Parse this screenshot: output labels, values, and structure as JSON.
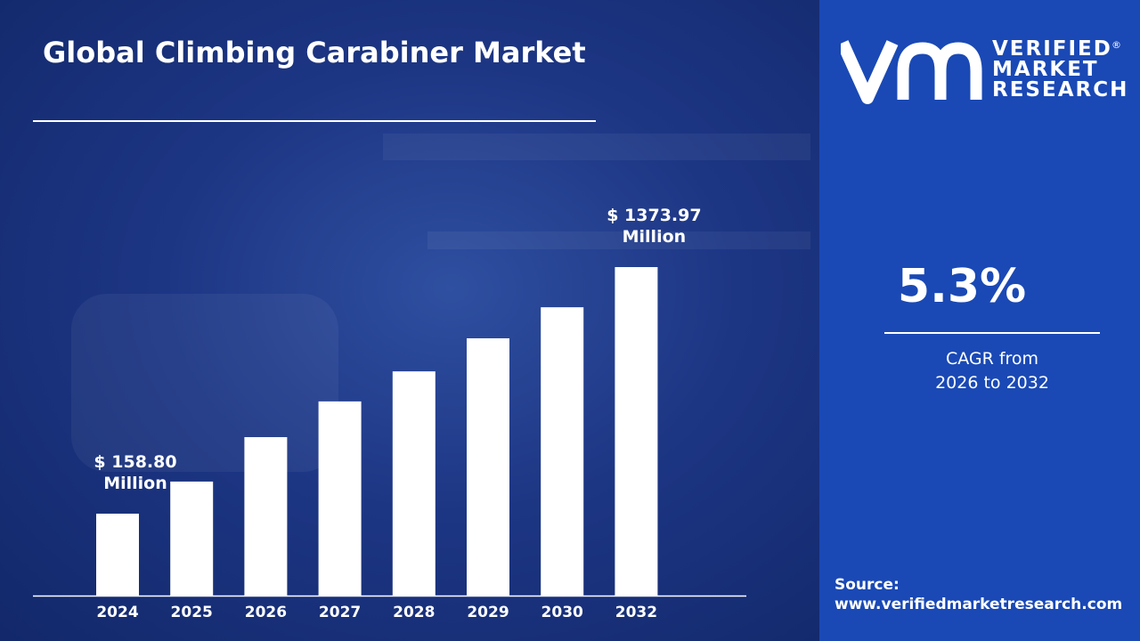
{
  "title": "Global Climbing Carabiner Market",
  "brand": {
    "name_lines": [
      "VERIFIED",
      "MARKET",
      "RESEARCH"
    ],
    "mark": "VMR",
    "registered": "®"
  },
  "cagr": {
    "value": "5.3%",
    "label_line1": "CAGR from",
    "label_line2": "2026 to 2032"
  },
  "source": {
    "label": "Source:",
    "url": "www.verifiedmarketresearch.com"
  },
  "colors": {
    "bar": "#ffffff",
    "background": "#1d3684",
    "panel": "#1a49b5",
    "text": "#ffffff"
  },
  "chart_data": {
    "type": "bar",
    "categories": [
      "2024",
      "2025",
      "2026",
      "2027",
      "2028",
      "2029",
      "2030",
      "2032"
    ],
    "values": [
      158.8,
      317,
      536,
      712,
      860,
      1023,
      1176,
      1373.97
    ],
    "unit": "USD Million",
    "data_labels": [
      {
        "category": "2024",
        "line1": "$ 158.80",
        "line2": "Million"
      },
      {
        "category": "2032",
        "line1": "$ 1373.97",
        "line2": "Million"
      }
    ],
    "title": "Global Climbing Carabiner Market",
    "xlabel": "",
    "ylabel": "",
    "ylim": [
      -245,
      1400
    ],
    "grid": false,
    "legend": "none"
  }
}
